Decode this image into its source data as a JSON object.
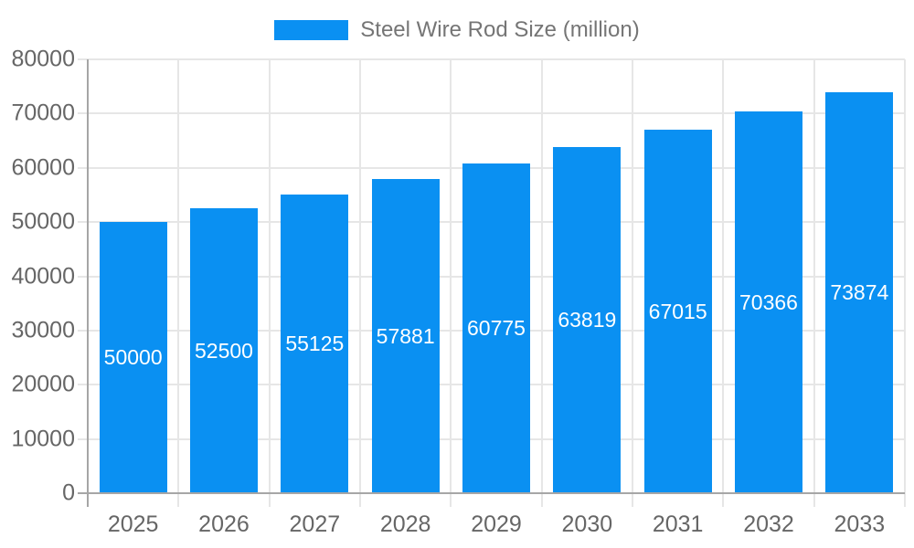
{
  "legend": {
    "label": "Steel Wire Rod Size (million)"
  },
  "colors": {
    "bar": "#0a90f2",
    "legend_text": "#757575",
    "axis_label": "#666666",
    "gridline": "#e6e6e6",
    "axis_line": "#a6a6a6",
    "value_label": "#ffffff",
    "background": "#ffffff"
  },
  "chart_data": {
    "type": "bar",
    "title": "",
    "xlabel": "",
    "ylabel": "",
    "categories": [
      "2025",
      "2026",
      "2027",
      "2028",
      "2029",
      "2030",
      "2031",
      "2032",
      "2033"
    ],
    "series": [
      {
        "name": "Steel Wire Rod Size (million)",
        "values": [
          50000,
          52500,
          55125,
          57881,
          60775,
          63819,
          67015,
          70366,
          73874
        ]
      }
    ],
    "value_labels": [
      "50000",
      "52500",
      "55125",
      "57881",
      "60775",
      "63819",
      "67015",
      "70366",
      "73874"
    ],
    "ylim": [
      0,
      80000
    ],
    "ytick_step": 10000,
    "ytick_labels": [
      "0",
      "10000",
      "20000",
      "30000",
      "40000",
      "50000",
      "60000",
      "70000",
      "80000"
    ],
    "grid": true,
    "legend_position": "top-center",
    "value_label_position": "inside-center"
  }
}
